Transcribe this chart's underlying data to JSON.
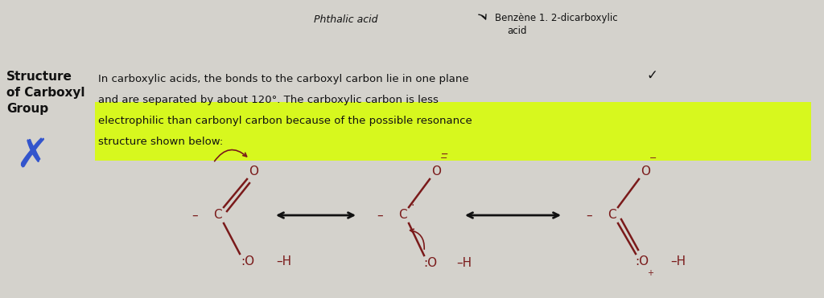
{
  "bg_color": "#cccac4",
  "page_bg": "#d4d2cc",
  "title_top": "Phthalic acid",
  "title_top2": "Benzène 1. 2-dicarboxylic",
  "title_top2b": "acid",
  "left_heading1": "Structure",
  "left_heading2": "of Carboxyl",
  "left_heading3": "Group",
  "body_line1": "In carboxylic acids, the bonds to the carboxyl carbon lie in one plane",
  "body_line2": "and are separated by about 120°. The carboxylic carbon is less",
  "body_line3": "electrophilic than carbonyl carbon because of the possible resonance",
  "body_line4": "structure shown below:",
  "highlight_color": "#d8ff00",
  "text_color": "#111111",
  "chem_color": "#7a1a1a",
  "arrow_color": "#111111",
  "bond_lw": 1.8
}
